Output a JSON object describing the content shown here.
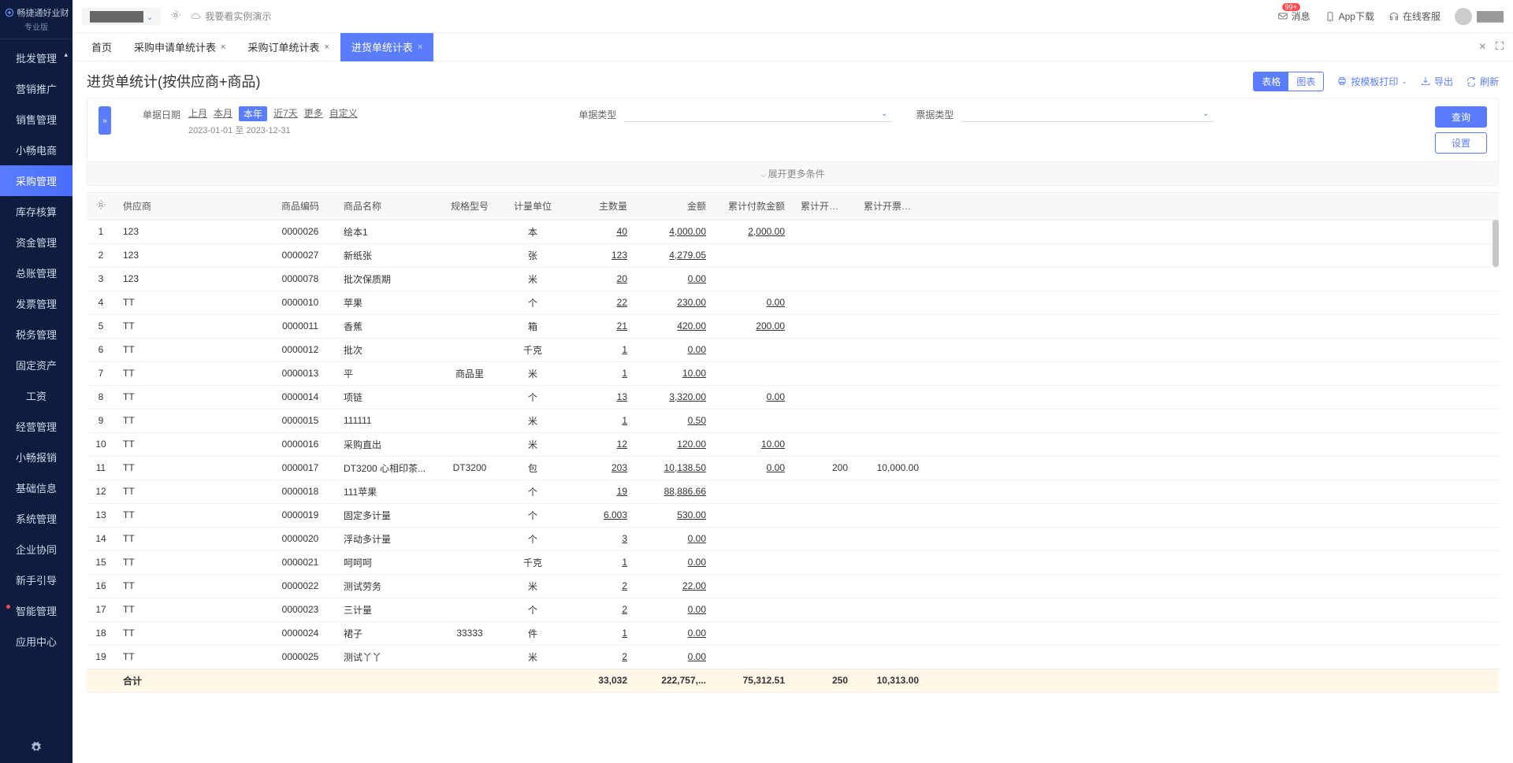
{
  "brand": {
    "name": "畅捷通好业财",
    "edition": "专业版"
  },
  "sidebar": {
    "items": [
      {
        "label": "批发管理",
        "expanded": true
      },
      {
        "label": "营销推广"
      },
      {
        "label": "销售管理"
      },
      {
        "label": "小畅电商"
      },
      {
        "label": "采购管理",
        "active": true
      },
      {
        "label": "库存核算"
      },
      {
        "label": "资金管理"
      },
      {
        "label": "总账管理"
      },
      {
        "label": "发票管理"
      },
      {
        "label": "税务管理"
      },
      {
        "label": "固定资产"
      },
      {
        "label": "工资"
      },
      {
        "label": "经营管理"
      },
      {
        "label": "小畅报销"
      },
      {
        "label": "基础信息"
      },
      {
        "label": "系统管理"
      },
      {
        "label": "企业协同"
      },
      {
        "label": "新手引导"
      },
      {
        "label": "智能管理",
        "red_dot": true
      },
      {
        "label": "应用中心"
      }
    ]
  },
  "topbar": {
    "org_name": "████████",
    "demo_link": "我要看实例演示",
    "message_label": "消息",
    "message_badge": "99+",
    "app_download": "App下载",
    "support": "在线客服",
    "user_name": "████"
  },
  "tabs": [
    {
      "label": "首页",
      "closable": false
    },
    {
      "label": "采购申请单统计表",
      "closable": true
    },
    {
      "label": "采购订单统计表",
      "closable": true
    },
    {
      "label": "进货单统计表",
      "closable": true,
      "active": true
    }
  ],
  "page": {
    "title": "进货单统计(按供应商+商品)",
    "toggle": {
      "left": "表格",
      "right": "图表"
    },
    "print_tmpl": "按模板打印",
    "export": "导出",
    "refresh": "刷新"
  },
  "filters": {
    "date_label": "单据日期",
    "date_opts": [
      "上月",
      "本月",
      "本年",
      "近7天",
      "更多",
      "自定义"
    ],
    "date_active_idx": 2,
    "date_range": "2023-01-01 至 2023-12-31",
    "doc_type_label": "单据类型",
    "invoice_type_label": "票据类型",
    "query_btn": "查询",
    "setting_btn": "设置",
    "expand_more": "展开更多条件"
  },
  "table": {
    "columns": [
      "供应商",
      "商品编码",
      "商品名称",
      "规格型号",
      "计量单位",
      "主数量",
      "金额",
      "累计付款金额",
      "累计开票数量",
      "累计开票金额"
    ],
    "rows": [
      {
        "idx": 1,
        "supplier": "123",
        "code": "0000026",
        "name": "绘本1",
        "spec": "",
        "unit": "本",
        "qty": "40",
        "amt": "4,000.00",
        "pay": "2,000.00",
        "invqty": "",
        "invamt": ""
      },
      {
        "idx": 2,
        "supplier": "123",
        "code": "0000027",
        "name": "新纸张",
        "spec": "",
        "unit": "张",
        "qty": "123",
        "amt": "4,279.05",
        "pay": "",
        "invqty": "",
        "invamt": ""
      },
      {
        "idx": 3,
        "supplier": "123",
        "code": "0000078",
        "name": "批次保质期",
        "spec": "",
        "unit": "米",
        "qty": "20",
        "amt": "0.00",
        "pay": "",
        "invqty": "",
        "invamt": ""
      },
      {
        "idx": 4,
        "supplier": "TT",
        "code": "0000010",
        "name": "苹果",
        "spec": "",
        "unit": "个",
        "qty": "22",
        "amt": "230.00",
        "pay": "0.00",
        "invqty": "",
        "invamt": ""
      },
      {
        "idx": 5,
        "supplier": "TT",
        "code": "0000011",
        "name": "香蕉",
        "spec": "",
        "unit": "箱",
        "qty": "21",
        "amt": "420.00",
        "pay": "200.00",
        "invqty": "",
        "invamt": ""
      },
      {
        "idx": 6,
        "supplier": "TT",
        "code": "0000012",
        "name": "批次",
        "spec": "",
        "unit": "千克",
        "qty": "1",
        "amt": "0.00",
        "pay": "",
        "invqty": "",
        "invamt": ""
      },
      {
        "idx": 7,
        "supplier": "TT",
        "code": "0000013",
        "name": "平",
        "spec": "商品里",
        "unit": "米",
        "qty": "1",
        "amt": "10.00",
        "pay": "",
        "invqty": "",
        "invamt": ""
      },
      {
        "idx": 8,
        "supplier": "TT",
        "code": "0000014",
        "name": "项链",
        "spec": "",
        "unit": "个",
        "qty": "13",
        "amt": "3,320.00",
        "pay": "0.00",
        "invqty": "",
        "invamt": ""
      },
      {
        "idx": 9,
        "supplier": "TT",
        "code": "0000015",
        "name": "111111",
        "spec": "",
        "unit": "米",
        "qty": "1",
        "amt": "0.50",
        "pay": "",
        "invqty": "",
        "invamt": ""
      },
      {
        "idx": 10,
        "supplier": "TT",
        "code": "0000016",
        "name": "采购直出",
        "spec": "",
        "unit": "米",
        "qty": "12",
        "amt": "120.00",
        "pay": "10.00",
        "invqty": "",
        "invamt": ""
      },
      {
        "idx": 11,
        "supplier": "TT",
        "code": "0000017",
        "name": "DT3200 心相印茶...",
        "spec": "DT3200",
        "unit": "包",
        "qty": "203",
        "amt": "10,138.50",
        "pay": "0.00",
        "invqty": "200",
        "invamt": "10,000.00"
      },
      {
        "idx": 12,
        "supplier": "TT",
        "code": "0000018",
        "name": "111苹果",
        "spec": "",
        "unit": "个",
        "qty": "19",
        "amt": "88,886.66",
        "pay": "",
        "invqty": "",
        "invamt": ""
      },
      {
        "idx": 13,
        "supplier": "TT",
        "code": "0000019",
        "name": "固定多计量",
        "spec": "",
        "unit": "个",
        "qty": "6.003",
        "amt": "530.00",
        "pay": "",
        "invqty": "",
        "invamt": ""
      },
      {
        "idx": 14,
        "supplier": "TT",
        "code": "0000020",
        "name": "浮动多计量",
        "spec": "",
        "unit": "个",
        "qty": "3",
        "amt": "0.00",
        "pay": "",
        "invqty": "",
        "invamt": ""
      },
      {
        "idx": 15,
        "supplier": "TT",
        "code": "0000021",
        "name": "呵呵呵",
        "spec": "",
        "unit": "千克",
        "qty": "1",
        "amt": "0.00",
        "pay": "",
        "invqty": "",
        "invamt": ""
      },
      {
        "idx": 16,
        "supplier": "TT",
        "code": "0000022",
        "name": "测试劳务",
        "spec": "",
        "unit": "米",
        "qty": "2",
        "amt": "22.00",
        "pay": "",
        "invqty": "",
        "invamt": ""
      },
      {
        "idx": 17,
        "supplier": "TT",
        "code": "0000023",
        "name": "三计量",
        "spec": "",
        "unit": "个",
        "qty": "2",
        "amt": "0.00",
        "pay": "",
        "invqty": "",
        "invamt": ""
      },
      {
        "idx": 18,
        "supplier": "TT",
        "code": "0000024",
        "name": "裙子",
        "spec": "33333",
        "unit": "件",
        "qty": "1",
        "amt": "0.00",
        "pay": "",
        "invqty": "",
        "invamt": ""
      },
      {
        "idx": 19,
        "supplier": "TT",
        "code": "0000025",
        "name": "测试丫丫",
        "spec": "",
        "unit": "米",
        "qty": "2",
        "amt": "0.00",
        "pay": "",
        "invqty": "",
        "invamt": ""
      }
    ],
    "total": {
      "label": "合计",
      "qty": "33,032",
      "amt": "222,757,...",
      "pay": "75,312.51",
      "invqty": "250",
      "invamt": "10,313.00"
    }
  }
}
